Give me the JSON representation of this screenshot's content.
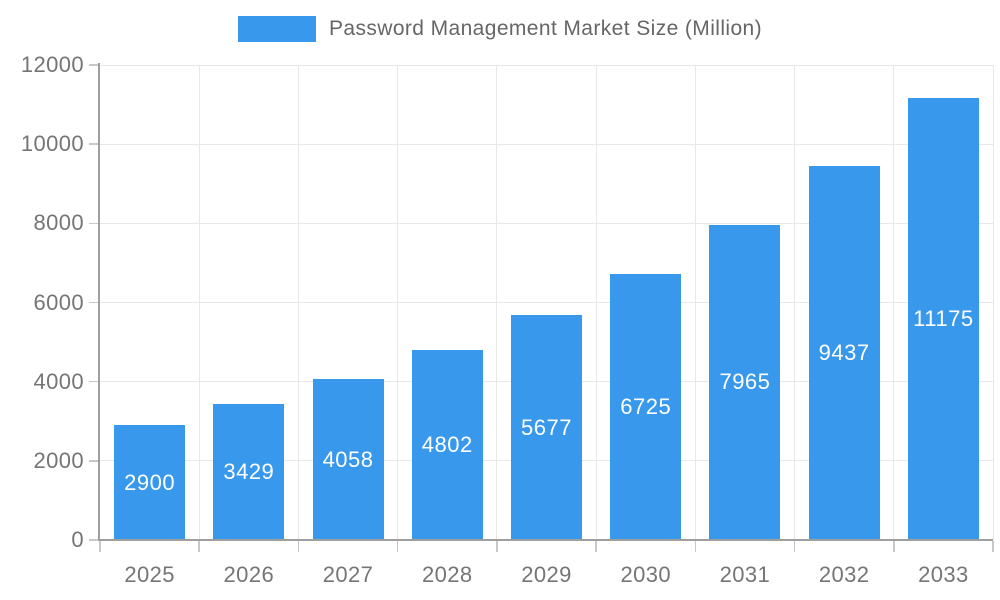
{
  "legend": {
    "label": "Password Management Market Size (Million)"
  },
  "colors": {
    "bar": "#3898EC",
    "bar_label": "#FFFFFF",
    "axis_line": "#9E9E9E",
    "gridline": "#E8E8E8",
    "tick_mark": "#C8C8C8",
    "tick_label": "#757575",
    "legend_label": "#666666",
    "background": "#FFFFFF"
  },
  "chart_data": {
    "type": "bar",
    "title": "Password Management Market Size (Million)",
    "categories": [
      "2025",
      "2026",
      "2027",
      "2028",
      "2029",
      "2030",
      "2031",
      "2032",
      "2033"
    ],
    "values": [
      2900,
      3429,
      4058,
      4802,
      5677,
      6725,
      7965,
      9437,
      11175
    ],
    "series": [
      {
        "name": "Password Management Market Size (Million)",
        "values": [
          2900,
          3429,
          4058,
          4802,
          5677,
          6725,
          7965,
          9437,
          11175
        ]
      }
    ],
    "xlabel": "",
    "ylabel": "",
    "ylim": [
      0,
      12000
    ],
    "ytick_step": 2000,
    "ytick_labels": [
      "0",
      "2000",
      "4000",
      "6000",
      "8000",
      "10000",
      "12000"
    ],
    "grid": true,
    "legend_position": "top",
    "value_labels": "inside-center"
  }
}
